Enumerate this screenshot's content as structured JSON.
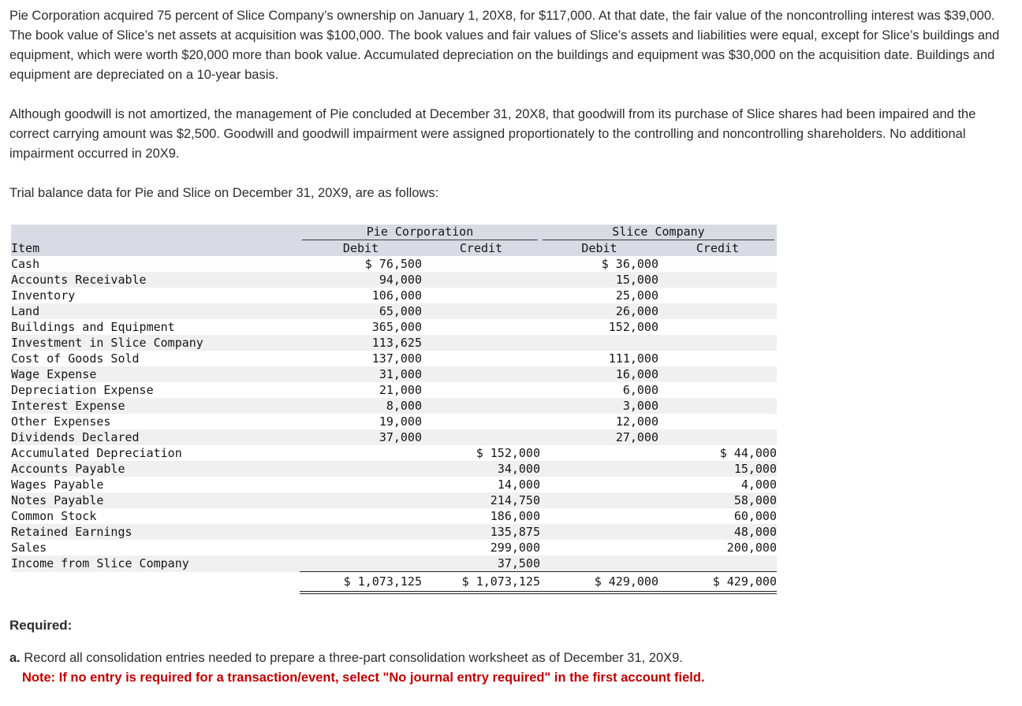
{
  "colors": {
    "text": "#2d2d2d",
    "header_bg": "#d8dbe3",
    "stripe": "#f0f0f1",
    "note_red": "#c00000"
  },
  "intro": {
    "para1": "Pie Corporation acquired 75 percent of Slice Company’s ownership on January 1, 20X8, for $117,000. At that date, the fair value of the noncontrolling interest was $39,000. The book value of Slice’s net assets at acquisition was $100,000. The book values and fair values of Slice’s assets and liabilities were equal, except for Slice’s buildings and equipment, which were worth $20,000 more than book value. Accumulated depreciation on the buildings and equipment was $30,000 on the acquisition date. Buildings and equipment are depreciated on a 10-year basis.",
    "para2": "Although goodwill is not amortized, the management of Pie concluded at December 31, 20X8, that goodwill from its purchase of Slice shares had been impaired and the correct carrying amount was $2,500. Goodwill and goodwill impairment were assigned proportionately to the controlling and noncontrolling shareholders. No additional impairment occurred in 20X9.",
    "para3": "Trial balance data for Pie and Slice on December 31, 20X9, are as follows:"
  },
  "table": {
    "item_header": "Item",
    "group_headers": [
      "Pie Corporation",
      "Slice Company"
    ],
    "col_headers": [
      "Debit",
      "Credit",
      "Debit",
      "Credit"
    ],
    "rows": [
      {
        "item": "Cash",
        "pie_debit": "$ 76,500",
        "pie_credit": "",
        "slice_debit": "$ 36,000",
        "slice_credit": ""
      },
      {
        "item": "Accounts Receivable",
        "pie_debit": "94,000",
        "pie_credit": "",
        "slice_debit": "15,000",
        "slice_credit": ""
      },
      {
        "item": "Inventory",
        "pie_debit": "106,000",
        "pie_credit": "",
        "slice_debit": "25,000",
        "slice_credit": ""
      },
      {
        "item": "Land",
        "pie_debit": "65,000",
        "pie_credit": "",
        "slice_debit": "26,000",
        "slice_credit": ""
      },
      {
        "item": "Buildings and Equipment",
        "pie_debit": "365,000",
        "pie_credit": "",
        "slice_debit": "152,000",
        "slice_credit": ""
      },
      {
        "item": "Investment in Slice Company",
        "pie_debit": "113,625",
        "pie_credit": "",
        "slice_debit": "",
        "slice_credit": ""
      },
      {
        "item": "Cost of Goods Sold",
        "pie_debit": "137,000",
        "pie_credit": "",
        "slice_debit": "111,000",
        "slice_credit": ""
      },
      {
        "item": "Wage Expense",
        "pie_debit": "31,000",
        "pie_credit": "",
        "slice_debit": "16,000",
        "slice_credit": ""
      },
      {
        "item": "Depreciation Expense",
        "pie_debit": "21,000",
        "pie_credit": "",
        "slice_debit": "6,000",
        "slice_credit": ""
      },
      {
        "item": "Interest Expense",
        "pie_debit": "8,000",
        "pie_credit": "",
        "slice_debit": "3,000",
        "slice_credit": ""
      },
      {
        "item": "Other Expenses",
        "pie_debit": "19,000",
        "pie_credit": "",
        "slice_debit": "12,000",
        "slice_credit": ""
      },
      {
        "item": "Dividends Declared",
        "pie_debit": "37,000",
        "pie_credit": "",
        "slice_debit": "27,000",
        "slice_credit": ""
      },
      {
        "item": "Accumulated Depreciation",
        "pie_debit": "",
        "pie_credit": "$ 152,000",
        "slice_debit": "",
        "slice_credit": "$ 44,000"
      },
      {
        "item": "Accounts Payable",
        "pie_debit": "",
        "pie_credit": "34,000",
        "slice_debit": "",
        "slice_credit": "15,000"
      },
      {
        "item": "Wages Payable",
        "pie_debit": "",
        "pie_credit": "14,000",
        "slice_debit": "",
        "slice_credit": "4,000"
      },
      {
        "item": "Notes Payable",
        "pie_debit": "",
        "pie_credit": "214,750",
        "slice_debit": "",
        "slice_credit": "58,000"
      },
      {
        "item": "Common Stock",
        "pie_debit": "",
        "pie_credit": "186,000",
        "slice_debit": "",
        "slice_credit": "60,000"
      },
      {
        "item": "Retained Earnings",
        "pie_debit": "",
        "pie_credit": "135,875",
        "slice_debit": "",
        "slice_credit": "48,000"
      },
      {
        "item": "Sales",
        "pie_debit": "",
        "pie_credit": "299,000",
        "slice_debit": "",
        "slice_credit": "200,000"
      },
      {
        "item": "Income from Slice Company",
        "pie_debit": "",
        "pie_credit": "37,500",
        "slice_debit": "",
        "slice_credit": ""
      }
    ],
    "totals": {
      "pie_debit": "$ 1,073,125",
      "pie_credit": "$ 1,073,125",
      "slice_debit": "$ 429,000",
      "slice_credit": "$ 429,000"
    }
  },
  "required": {
    "label": "Required:",
    "item_a_prefix": "a.",
    "item_a_text": " Record all consolidation entries needed to prepare a three-part consolidation worksheet as of December 31, 20X9.",
    "note": "Note: If no entry is required for a transaction/event, select \"No journal entry required\" in the first account field."
  }
}
